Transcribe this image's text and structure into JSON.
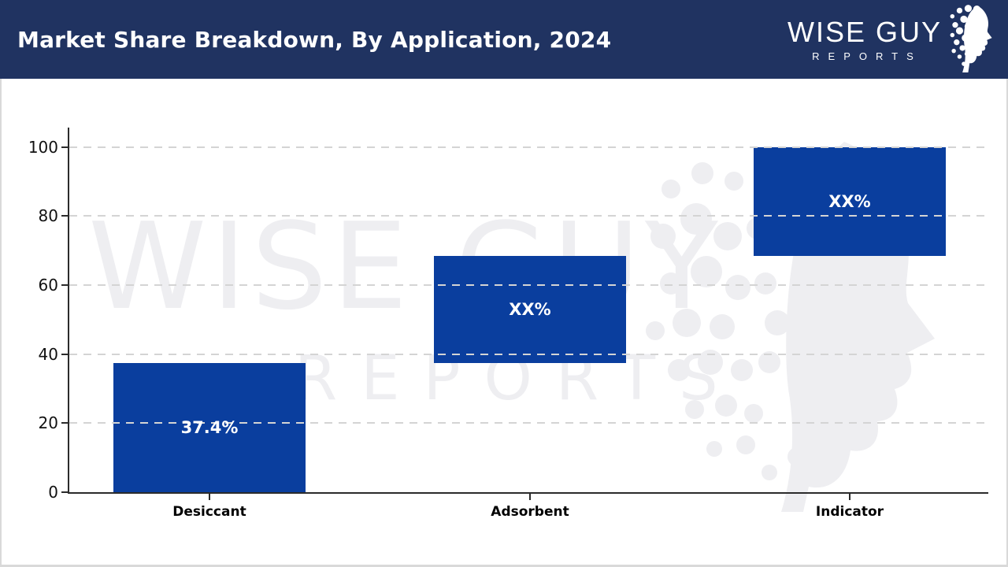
{
  "header": {
    "title": "Market Share Breakdown, By Application, 2024",
    "logo": {
      "wordmark": "WISE GUY",
      "subtext": "REPORTS"
    }
  },
  "watermark": {
    "line1": "WISE GUY",
    "line2": "REPORTS"
  },
  "colors": {
    "header_bg": "#203361",
    "bar_fill": "#0a3e9e",
    "bar_label_text": "#ffffff",
    "grid_line": "#d4d4d4",
    "axis_line": "#2b2b2b",
    "tick_text": "#111111",
    "watermark": "#eeeef1",
    "page_border": "#d9d9d9"
  },
  "chart_data": {
    "type": "bar",
    "subtype": "floating-waterfall",
    "title": "Market Share Breakdown, By Application, 2024",
    "categories": [
      "Desiccant",
      "Adsorbent",
      "Indicator"
    ],
    "series": [
      {
        "name": "Market share by application (%)",
        "segments": [
          {
            "category": "Desiccant",
            "label": "37.4%",
            "start": 0,
            "end": 37.4
          },
          {
            "category": "Adsorbent",
            "label": "XX%",
            "start": 37.4,
            "end": 68.5
          },
          {
            "category": "Indicator",
            "label": "XX%",
            "start": 68.5,
            "end": 100
          }
        ]
      }
    ],
    "ylim": [
      0,
      100
    ],
    "yticks": [
      0,
      20,
      40,
      60,
      80,
      100
    ],
    "xlabel": "",
    "ylabel": "",
    "grid": "horizontal-dashed",
    "legend": "none"
  }
}
